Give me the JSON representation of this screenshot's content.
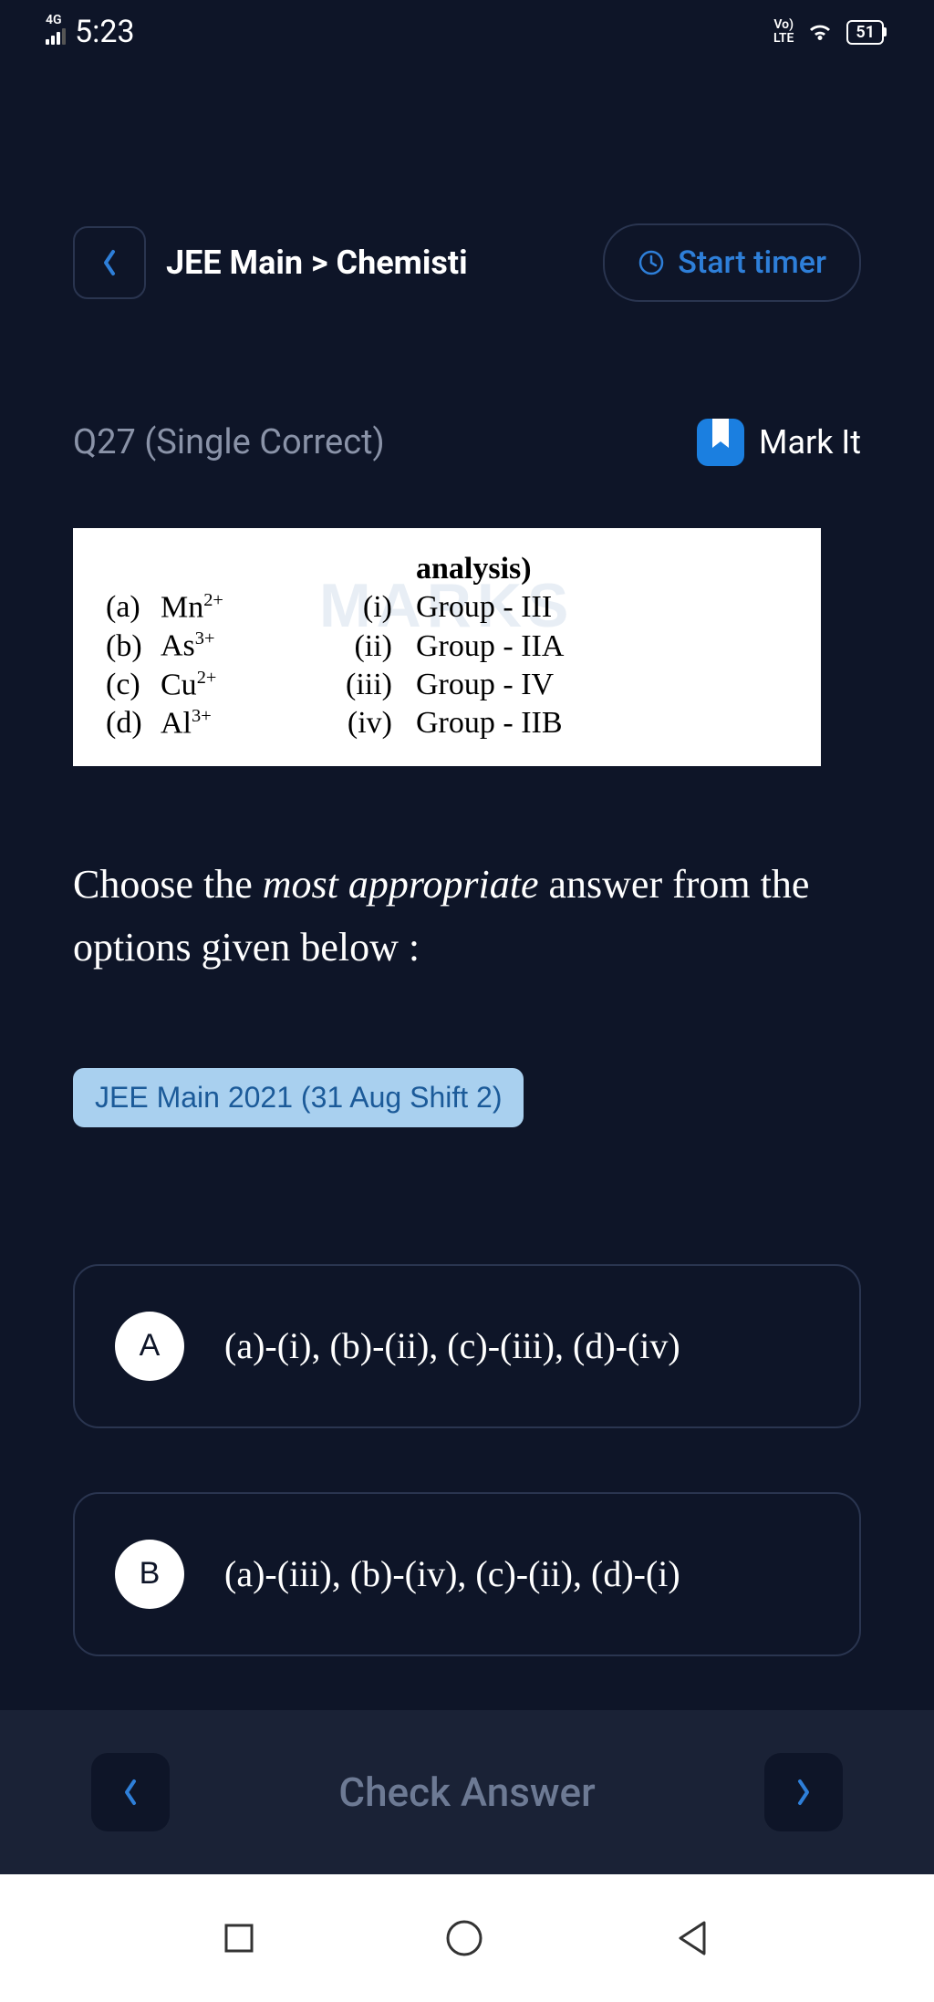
{
  "status": {
    "network": "4G",
    "time": "5:23",
    "lte": "Vo)\nLTE",
    "battery": "51"
  },
  "header": {
    "breadcrumb": "JEE Main > Chemisti",
    "timer": "Start timer"
  },
  "question": {
    "label": "Q27 (Single Correct)",
    "mark": "Mark It"
  },
  "table": {
    "header": "analysis)",
    "rows": [
      {
        "k": "(a)",
        "ion": "Mn",
        "sup": "2+",
        "n": "(i)",
        "g": "Group - III"
      },
      {
        "k": "(b)",
        "ion": "As",
        "sup": "3+",
        "n": "(ii)",
        "g": "Group - IIA"
      },
      {
        "k": "(c)",
        "ion": "Cu",
        "sup": "2+",
        "n": "(iii)",
        "g": "Group - IV"
      },
      {
        "k": "(d)",
        "ion": "Al",
        "sup": "3+",
        "n": "(iv)",
        "g": "Group - IIB"
      }
    ]
  },
  "prompt": {
    "pre": "Choose the ",
    "ital": "most appropriate",
    "post": " answer from the options given below :"
  },
  "tag": "JEE Main 2021 (31 Aug Shift 2)",
  "options": [
    {
      "badge": "A",
      "text": "(a)-(i), (b)-(ii), (c)-(iii), (d)-(iv)"
    },
    {
      "badge": "B",
      "text": "(a)-(iii), (b)-(iv), (c)-(ii), (d)-(i)"
    }
  ],
  "footer": {
    "check": "Check Answer"
  },
  "colors": {
    "accent": "#2e7fd9"
  }
}
